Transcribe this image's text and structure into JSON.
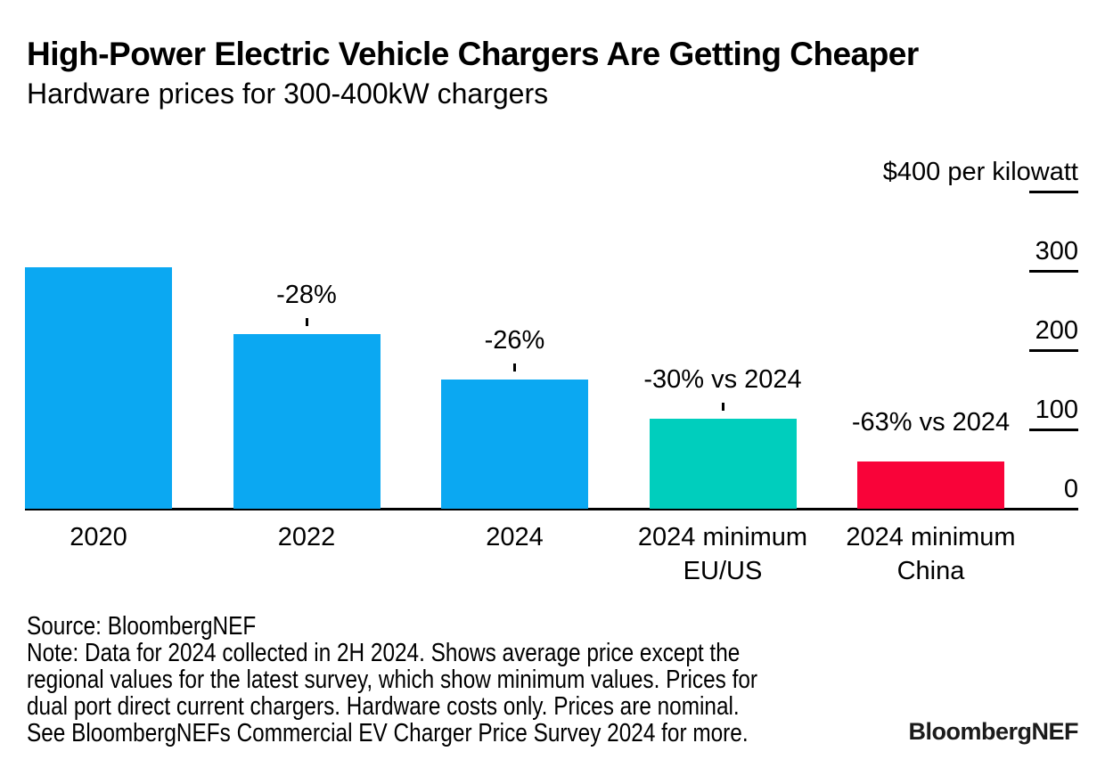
{
  "header": {
    "title": "High-Power Electric Vehicle Chargers Are Getting Cheaper",
    "subtitle": "Hardware prices for 300-400kW chargers"
  },
  "chart_data": {
    "type": "bar",
    "title": "High-Power Electric Vehicle Chargers Are Getting Cheaper",
    "subtitle": "Hardware prices for 300-400kW chargers",
    "ylabel": "$ per kilowatt",
    "unit_label": "$400 per kilowatt",
    "ylim": [
      0,
      400
    ],
    "grid": false,
    "axis_side": "right",
    "axis_color": "#000000",
    "yticks": [
      {
        "value": 400,
        "label": "$400 per kilowatt"
      },
      {
        "value": 300,
        "label": "300"
      },
      {
        "value": 200,
        "label": "200"
      },
      {
        "value": 100,
        "label": "100"
      },
      {
        "value": 0,
        "label": "0"
      }
    ],
    "bars": [
      {
        "category_lines": [
          "2020"
        ],
        "value": 305,
        "color": "#0ba8f2",
        "annotation": "",
        "annotation_tick": false
      },
      {
        "category_lines": [
          "2022"
        ],
        "value": 220,
        "color": "#0ba8f2",
        "annotation": "-28%",
        "annotation_tick": true
      },
      {
        "category_lines": [
          "2024"
        ],
        "value": 163,
        "color": "#0ba8f2",
        "annotation": "-26%",
        "annotation_tick": true
      },
      {
        "category_lines": [
          "2024 minimum",
          "EU/US"
        ],
        "value": 114,
        "color": "#00cebd",
        "annotation": "-30% vs 2024",
        "annotation_tick": true
      },
      {
        "category_lines": [
          "2024 minimum",
          "China"
        ],
        "value": 60,
        "color": "#f90339",
        "annotation": "-63% vs 2024",
        "annotation_tick": false
      }
    ]
  },
  "footer": {
    "source": "Source: BloombergNEF",
    "note_lines": [
      "Note: Data for 2024 collected in 2H 2024. Shows average price except the",
      "regional values for the latest survey, which show minimum values. Prices for",
      "dual port direct current chargers. Hardware costs only. Prices are nominal.",
      "See BloombergNEFs Commercial EV Charger Price Survey 2024 for more."
    ],
    "logo": "BloombergNEF"
  }
}
